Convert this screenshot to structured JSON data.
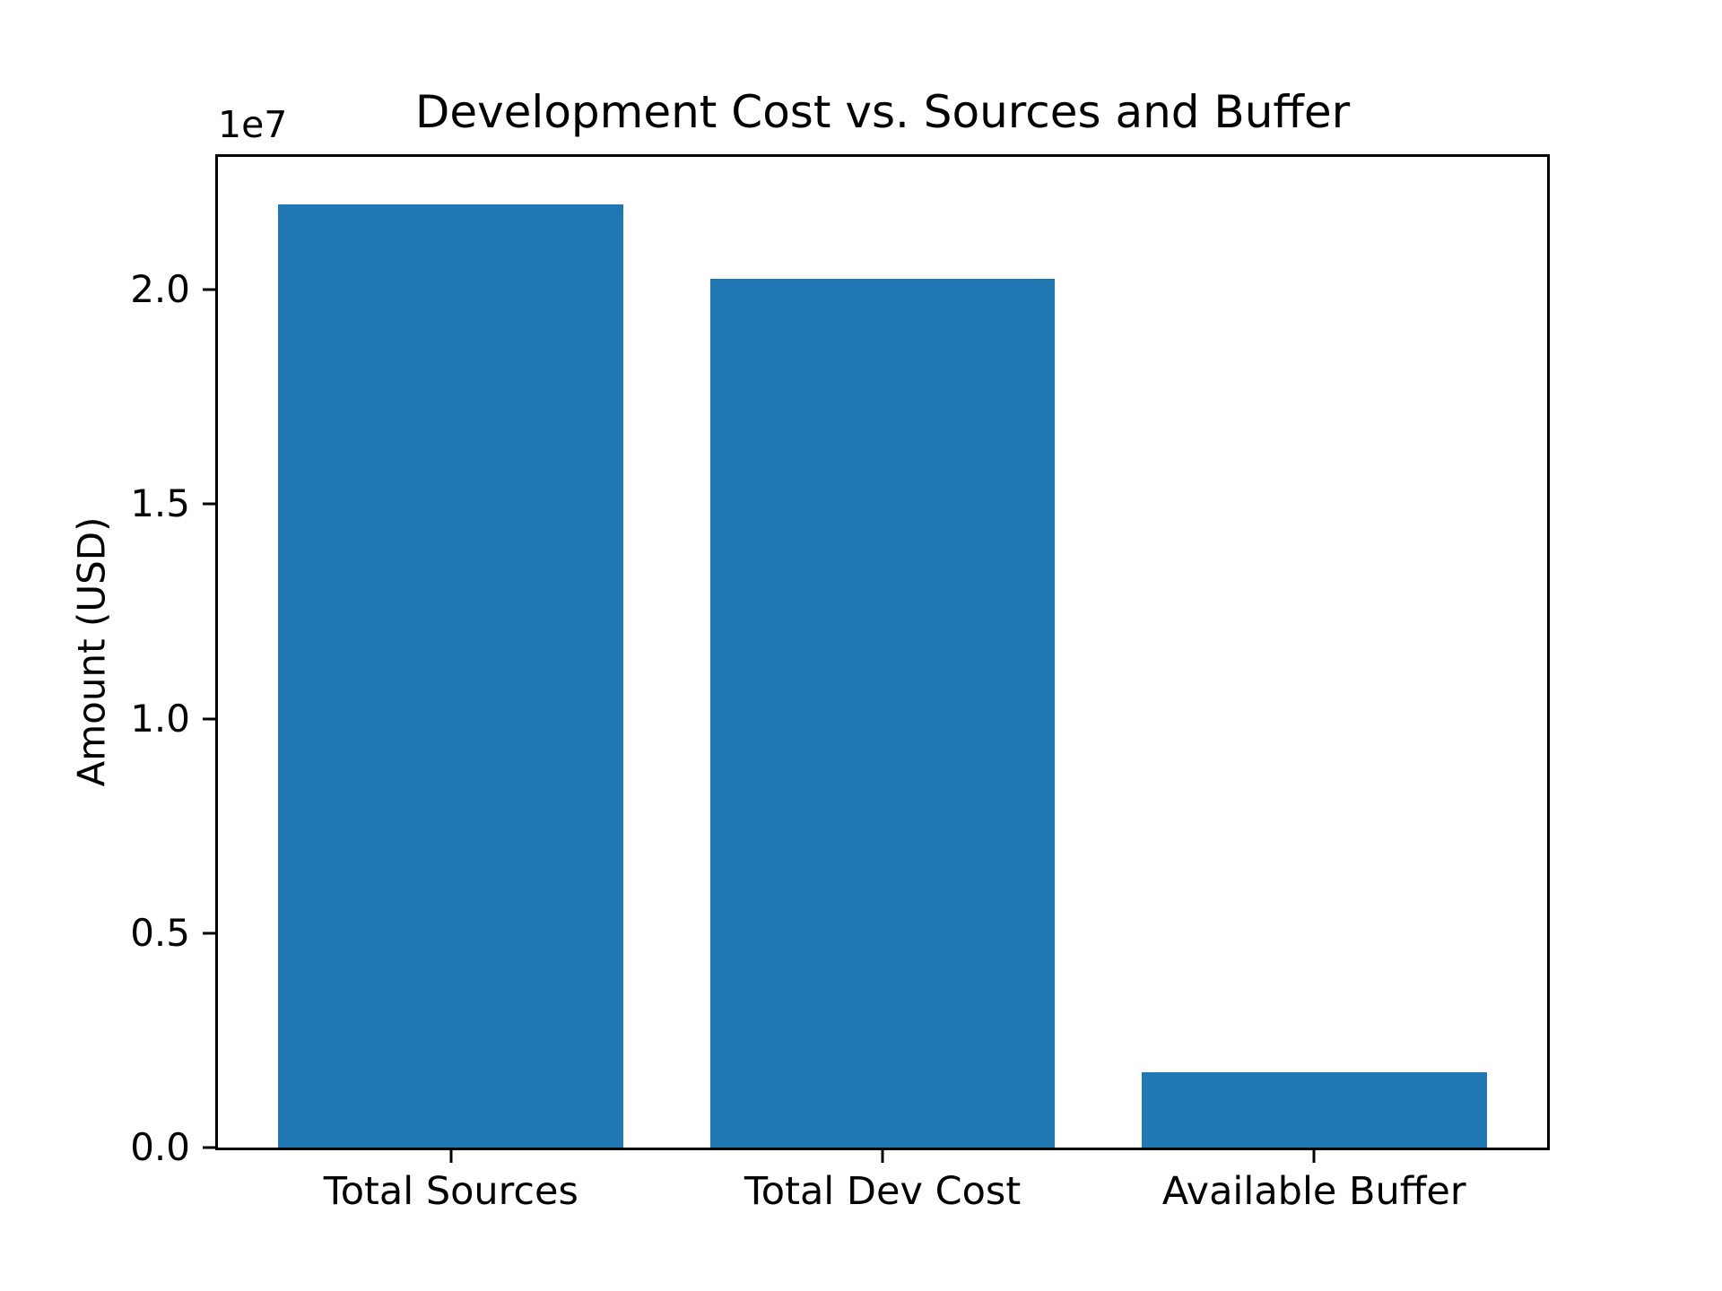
{
  "chart_data": {
    "type": "bar",
    "title": "Development Cost vs. Sources and Buffer",
    "xlabel": "",
    "ylabel": "Amount (USD)",
    "categories": [
      "Total Sources",
      "Total Dev Cost",
      "Available Buffer"
    ],
    "values": [
      22000000,
      20250000,
      1750000
    ],
    "bar_color": "#1f77b4",
    "bar_width": 0.8,
    "xlim": [
      -0.54,
      2.54
    ],
    "ylim": [
      0,
      23100000
    ],
    "yticks": [
      {
        "value": 0,
        "label": "0.0"
      },
      {
        "value": 5000000,
        "label": "0.5"
      },
      {
        "value": 10000000,
        "label": "1.0"
      },
      {
        "value": 15000000,
        "label": "1.5"
      },
      {
        "value": 20000000,
        "label": "2.0"
      }
    ],
    "y_offset_label": "1e7",
    "grid": false,
    "legend": false,
    "text_color": "#000000",
    "background_color": "#ffffff"
  }
}
